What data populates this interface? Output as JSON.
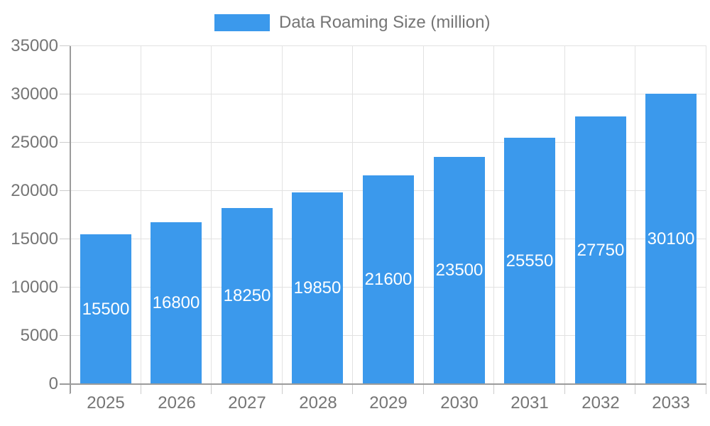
{
  "legend": {
    "label": "Data Roaming Size (million)"
  },
  "colors": {
    "bar": "#3B99EC",
    "bar_label": "#ffffff",
    "text": "#757575",
    "grid": "#e2e2e2",
    "axis": "#9b9b9b",
    "tick": "#cccccc",
    "background": "#ffffff"
  },
  "chart_data": {
    "type": "bar",
    "title": "",
    "categories": [
      "2025",
      "2026",
      "2027",
      "2028",
      "2029",
      "2030",
      "2031",
      "2032",
      "2033"
    ],
    "series": [
      {
        "name": "Data Roaming Size (million)",
        "values": [
          15500,
          16800,
          18250,
          19850,
          21600,
          23500,
          25550,
          27750,
          30100
        ]
      }
    ],
    "bar_value_labels": [
      "15500",
      "16800",
      "18250",
      "19850",
      "21600",
      "23500",
      "25550",
      "27750",
      "30100"
    ],
    "xlabel": "",
    "ylabel": "",
    "ylim": [
      0,
      35000
    ],
    "yticks": [
      0,
      5000,
      10000,
      15000,
      20000,
      25000,
      30000,
      35000
    ],
    "grid": true,
    "legend_position": "top",
    "legend_entries": [
      "Data Roaming Size (million)"
    ]
  }
}
